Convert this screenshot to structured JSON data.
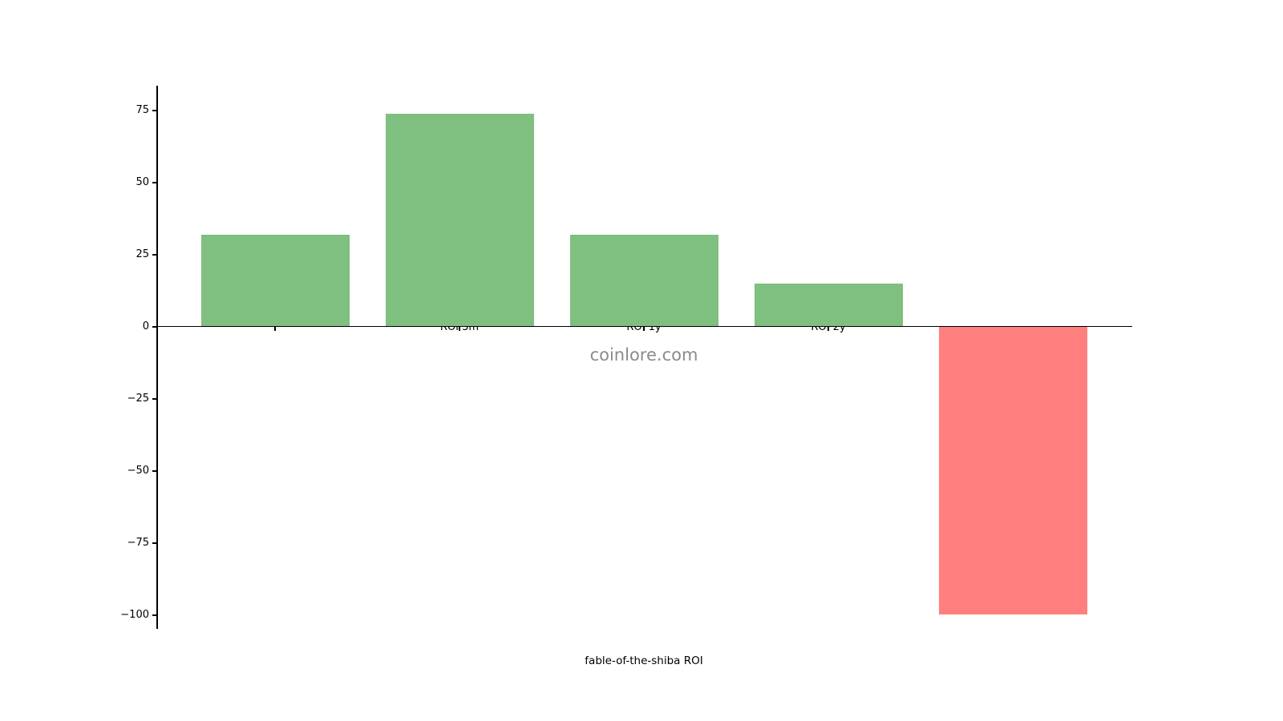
{
  "watermark": "coinlore.com",
  "colors": {
    "positive": "#7fbf7f",
    "negative": "#ff7f7f",
    "axis": "#000000",
    "text": "#000000",
    "watermark": "#8a8a8a",
    "background": "#ffffff"
  },
  "chart_data": {
    "type": "bar",
    "title": "fable-of-the-shiba ROI",
    "categories": [
      "",
      "ROI 3m",
      "ROI 1y",
      "ROI 2y",
      ""
    ],
    "values": [
      32,
      74,
      32,
      15,
      -100
    ],
    "bar_colors": [
      "#7fbf7f",
      "#7fbf7f",
      "#7fbf7f",
      "#7fbf7f",
      "#ff7f7f"
    ],
    "yticks": [
      75,
      50,
      25,
      0,
      -25,
      -50,
      -75,
      -100
    ],
    "ytick_labels": [
      "75",
      "50",
      "25",
      "0",
      "−25",
      "−50",
      "−75",
      "−100"
    ],
    "ylim": [
      -105,
      84
    ],
    "xlabel": "",
    "ylabel": "",
    "grid": false,
    "legend": "none",
    "annotations": [
      "coinlore.com"
    ]
  }
}
